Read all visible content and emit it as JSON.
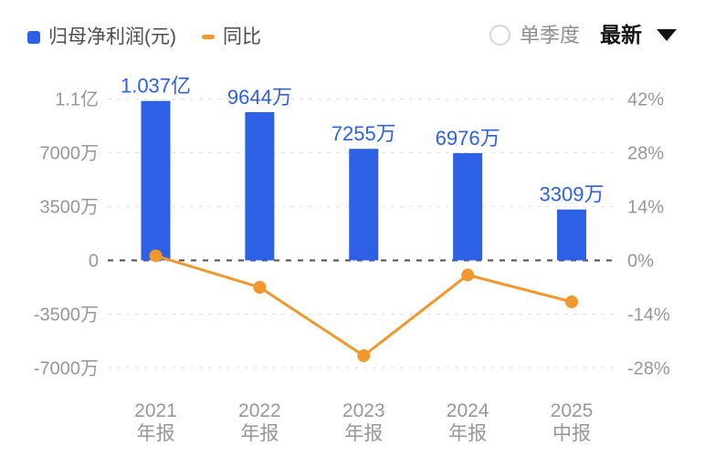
{
  "legend": {
    "items": [
      {
        "label": "归母净利润(元)",
        "swatch": "square",
        "color": "#2e60e6"
      },
      {
        "label": "同比",
        "swatch": "dash",
        "color": "#f0982e"
      }
    ]
  },
  "controls": {
    "radio_label": "单季度",
    "dropdown_value": "最新",
    "dropdown_icon": "caret-down"
  },
  "chart_data": {
    "type": "bar+line",
    "categories": [
      [
        "2021",
        "年报"
      ],
      [
        "2022",
        "年报"
      ],
      [
        "2023",
        "年报"
      ],
      [
        "2024",
        "年报"
      ],
      [
        "2025",
        "中报"
      ]
    ],
    "bar_series": {
      "name": "归母净利润(元)",
      "unit": "万元",
      "values_wan": [
        10370,
        9644,
        7255,
        6976,
        3309
      ],
      "labels": [
        "1.037亿",
        "9644万",
        "7255万",
        "6976万",
        "3309万"
      ]
    },
    "line_series": {
      "name": "同比",
      "unit": "%",
      "values_pct": [
        1.2,
        -7.0,
        -24.8,
        -3.8,
        -10.8
      ]
    },
    "left_axis": {
      "tick_labels": [
        "1.1亿",
        "7000万",
        "3500万",
        "0",
        "-3500万",
        "-7000万"
      ],
      "tick_values_wan": [
        10500,
        7000,
        3500,
        0,
        -3500,
        -7000
      ]
    },
    "right_axis": {
      "tick_labels": [
        "42%",
        "28%",
        "14%",
        "0%",
        "-14%",
        "-28%"
      ],
      "tick_values_pct": [
        42,
        28,
        14,
        0,
        -14,
        -28
      ]
    },
    "grid": "dashed",
    "legend_position": "top",
    "colors": {
      "bar": "#2e60e6",
      "bar_label": "#2e60e6",
      "line": "#f0982e",
      "axis_text": "#979797",
      "grid_light": "#e4e4e4",
      "grid_zero": "#4d4d4d"
    }
  }
}
